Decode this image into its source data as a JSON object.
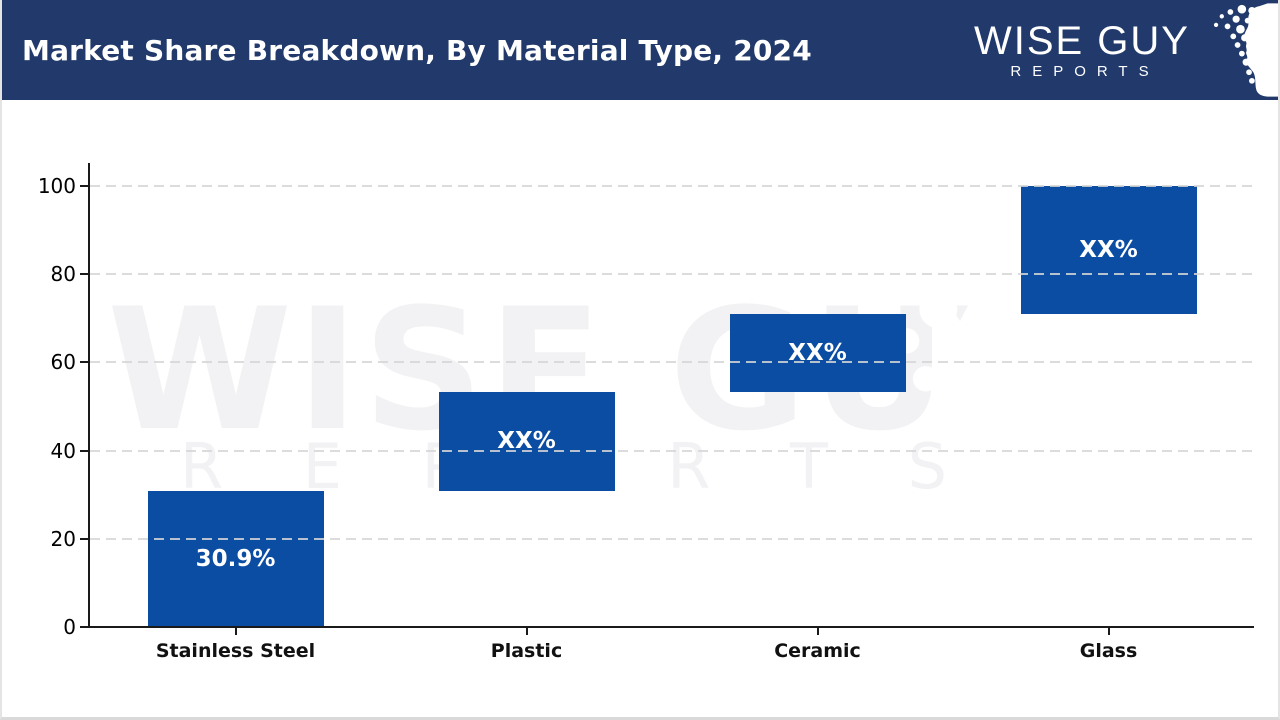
{
  "header": {
    "title": "Market Share Breakdown, By Material Type, 2024",
    "logo": {
      "line1": "WISE GUY",
      "line2": "REPORTS"
    }
  },
  "watermark": {
    "line1": "WISE GUY",
    "line2": "R E P O R T S"
  },
  "chart_data": {
    "type": "bar",
    "subtype": "waterfall",
    "title": "Market Share Breakdown, By Material Type, 2024",
    "xlabel": "",
    "ylabel": "",
    "categories": [
      "Stainless Steel",
      "Plastic",
      "Ceramic",
      "Glass"
    ],
    "bars": [
      {
        "category": "Stainless Steel",
        "start": 0,
        "end": 30.9,
        "label": "30.9%"
      },
      {
        "category": "Plastic",
        "start": 30.9,
        "end": 53.3,
        "label": "XX%"
      },
      {
        "category": "Ceramic",
        "start": 53.3,
        "end": 71.0,
        "label": "XX%"
      },
      {
        "category": "Glass",
        "start": 71.0,
        "end": 100,
        "label": "XX%"
      }
    ],
    "yticks": [
      0,
      20,
      40,
      60,
      80,
      100
    ],
    "ylim": [
      0,
      105
    ],
    "grid": true,
    "grid_style": "dashed",
    "legend": false,
    "bar_color": "#0B4DA2",
    "bar_label_color": "#ffffff"
  },
  "colors": {
    "header_bg": "#213A6B",
    "bar": "#0B4DA2",
    "grid": "#D6D6D6",
    "axis": "#1A1A1A",
    "watermark": "#F2F2F4"
  }
}
